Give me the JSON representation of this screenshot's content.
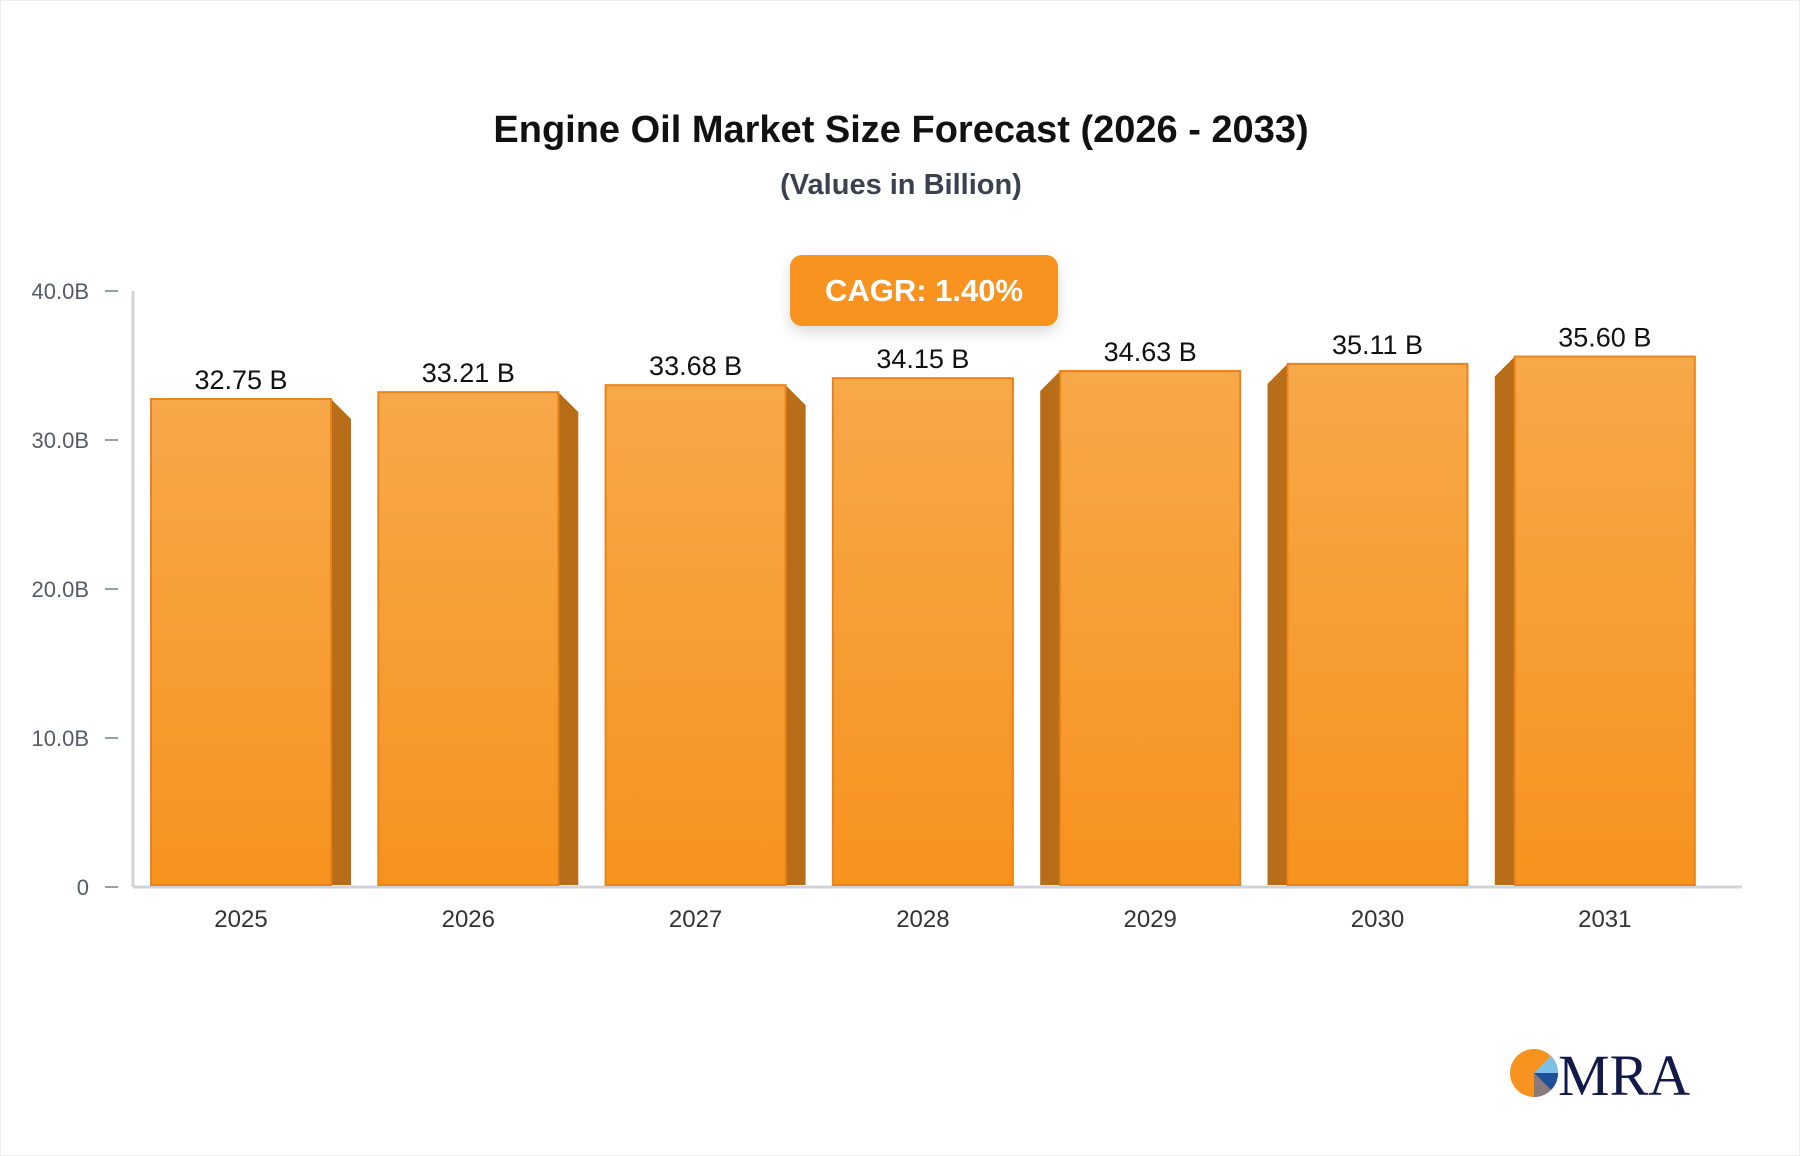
{
  "chart_data": {
    "type": "bar",
    "title": "Engine Oil Market Size Forecast (2026 - 2033)",
    "subtitle": "(Values in Billion)",
    "categories": [
      "2025",
      "2026",
      "2027",
      "2028",
      "2029",
      "2030",
      "2031"
    ],
    "values": [
      32.75,
      33.21,
      33.68,
      34.15,
      34.63,
      35.11,
      35.6
    ],
    "data_labels": [
      "32.75 B",
      "33.21 B",
      "33.68 B",
      "34.15 B",
      "34.63 B",
      "35.11 B",
      "35.60 B"
    ],
    "yticks": [
      0,
      10,
      20,
      30,
      40
    ],
    "ytick_labels": [
      "0",
      "10.0B",
      "20.0B",
      "30.0B",
      "40.0B"
    ],
    "ylim": [
      0,
      40
    ],
    "grid": false,
    "annotation": "CAGR: 1.40%",
    "colors": {
      "bar_top": "#f7a84a",
      "bar_bottom": "#f7931e",
      "bar_side": "#b86d18",
      "axis": "#d0d3da",
      "badge": "#f7931e"
    }
  },
  "logo": {
    "text": "MRA"
  }
}
